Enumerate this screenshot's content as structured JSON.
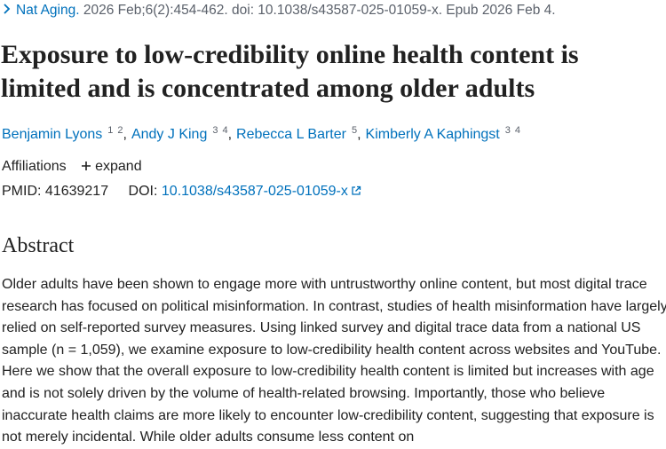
{
  "citation": {
    "journal": "Nat Aging.",
    "details": "2026 Feb;6(2):454-462. doi: 10.1038/s43587-025-01059-x. Epub 2026 Feb 4."
  },
  "title": "Exposure to low-credibility online health content is limited and is concentrated among older adults",
  "authors": [
    {
      "name": "Benjamin Lyons",
      "affiliations": [
        "1",
        "2"
      ]
    },
    {
      "name": "Andy J King",
      "affiliations": [
        "3",
        "4"
      ]
    },
    {
      "name": "Rebecca L Barter",
      "affiliations": [
        "5"
      ]
    },
    {
      "name": "Kimberly A Kaphingst",
      "affiliations": [
        "3",
        "4"
      ]
    }
  ],
  "affiliations": {
    "label": "Affiliations",
    "toggle": "expand"
  },
  "identifiers": {
    "pmid_label": "PMID:",
    "pmid": "41639217",
    "doi_label": "DOI:",
    "doi": "10.1038/s43587-025-01059-x"
  },
  "abstract": {
    "heading": "Abstract",
    "text": "Older adults have been shown to engage more with untrustworthy online content, but most digital trace research has focused on political misinformation. In contrast, studies of health misinformation have largely relied on self-reported survey measures. Using linked survey and digital trace data from a national US sample (n = 1,059), we examine exposure to low-credibility health content across websites and YouTube. Here we show that the overall exposure to low-credibility health content is limited but increases with age and is not solely driven by the volume of health-related browsing. Importantly, those who believe inaccurate health claims are more likely to encounter low-credibility content, suggesting that exposure is not merely incidental. While older adults consume less content on"
  }
}
